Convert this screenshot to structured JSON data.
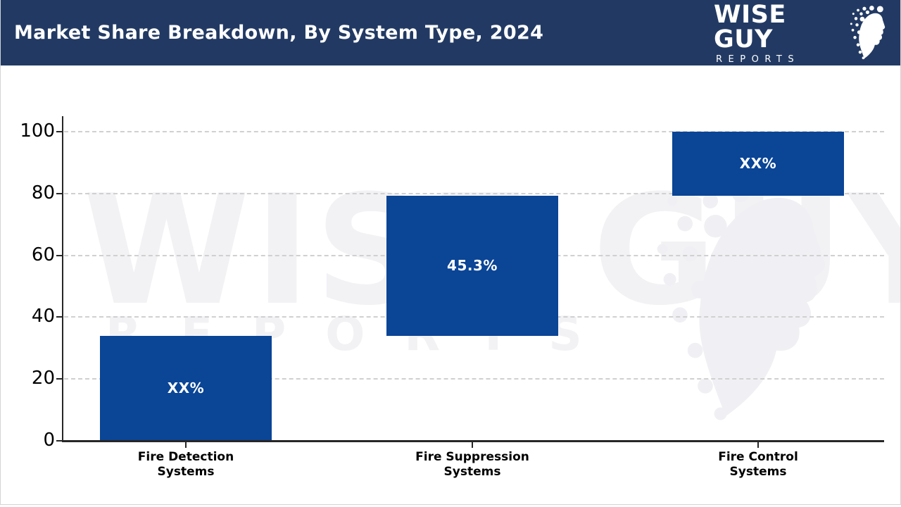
{
  "header": {
    "title": "Market Share Breakdown, By System Type, 2024",
    "logo": {
      "word1": "WISE GUY",
      "word2": "REPORTS"
    }
  },
  "watermark": {
    "word1": "WISE GUY",
    "word2": "REPORTS"
  },
  "colors": {
    "header_bg": "#223a63",
    "bar_fill": "#0a4596",
    "bar_label": "#ffffff",
    "gridline": "#d0d0d0",
    "axis": "#262626",
    "watermark": "#f2f2f5"
  },
  "chart_data": {
    "type": "bar",
    "subtype": "floating-waterfall",
    "title": "Market Share Breakdown, By System Type, 2024",
    "xlabel": "",
    "ylabel": "",
    "categories": [
      "Fire Detection Systems",
      "Fire Suppression Systems",
      "Fire Control Systems"
    ],
    "categories_wrapped": [
      [
        "Fire Detection",
        "Systems"
      ],
      [
        "Fire Suppression",
        "Systems"
      ],
      [
        "Fire Control",
        "Systems"
      ]
    ],
    "bars": [
      {
        "category": "Fire Detection Systems",
        "from": 0,
        "to": 34,
        "value_label": "XX%"
      },
      {
        "category": "Fire Suppression Systems",
        "from": 34,
        "to": 79.3,
        "value_label": "45.3%"
      },
      {
        "category": "Fire Control Systems",
        "from": 79.3,
        "to": 100,
        "value_label": "XX%"
      }
    ],
    "yticks": [
      0,
      20,
      40,
      60,
      80,
      100
    ],
    "ylim": [
      0,
      105
    ],
    "grid": "horizontal-dashed",
    "legend": "none",
    "bar_color": "#0a4596"
  }
}
